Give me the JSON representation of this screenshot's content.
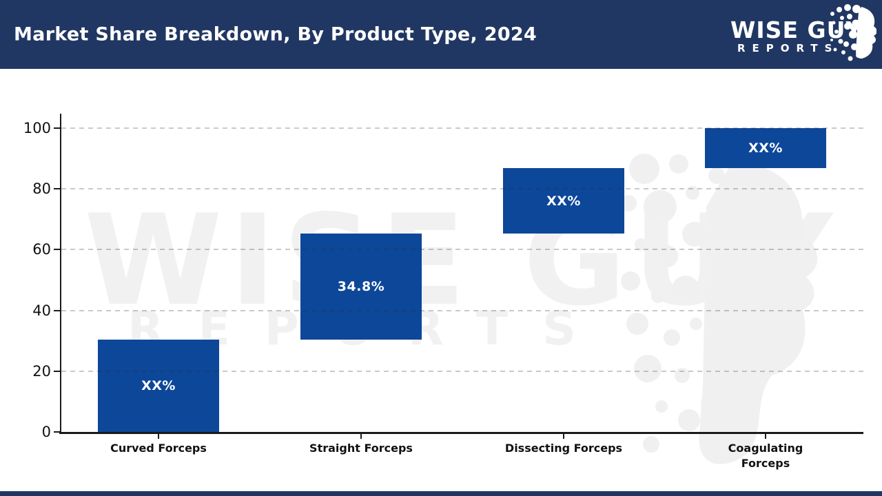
{
  "header": {
    "title": "Market Share Breakdown, By Product Type, 2024",
    "bg_color": "#213763",
    "logo": {
      "line1": "WISE GUY",
      "line2": "REPORTS"
    }
  },
  "watermark": {
    "line1": "WISE GUY",
    "line2": "REPORTS"
  },
  "chart_data": {
    "type": "bar",
    "subtype": "floating-stacked-percentage-bars",
    "title": "Market Share Breakdown, By Product Type, 2024",
    "categories": [
      "Curved Forceps",
      "Straight Forceps",
      "Dissecting Forceps",
      "Coagulating\nForceps"
    ],
    "segments": [
      {
        "category": "Curved Forceps",
        "start": 0,
        "end": 30.4,
        "label": "XX%"
      },
      {
        "category": "Straight Forceps",
        "start": 30.4,
        "end": 65.2,
        "label": "34.8%"
      },
      {
        "category": "Dissecting Forceps",
        "start": 65.2,
        "end": 86.8,
        "label": "XX%"
      },
      {
        "category": "Coagulating Forceps",
        "start": 86.8,
        "end": 100,
        "label": "XX%"
      }
    ],
    "bar_color": "#0d4799",
    "bar_label_color": "#ffffff",
    "xlabel": "",
    "ylabel": "",
    "ylim": [
      0,
      105
    ],
    "yticks": [
      0,
      20,
      40,
      60,
      80,
      100
    ],
    "grid": "horizontal-dashed",
    "legend": "none"
  }
}
